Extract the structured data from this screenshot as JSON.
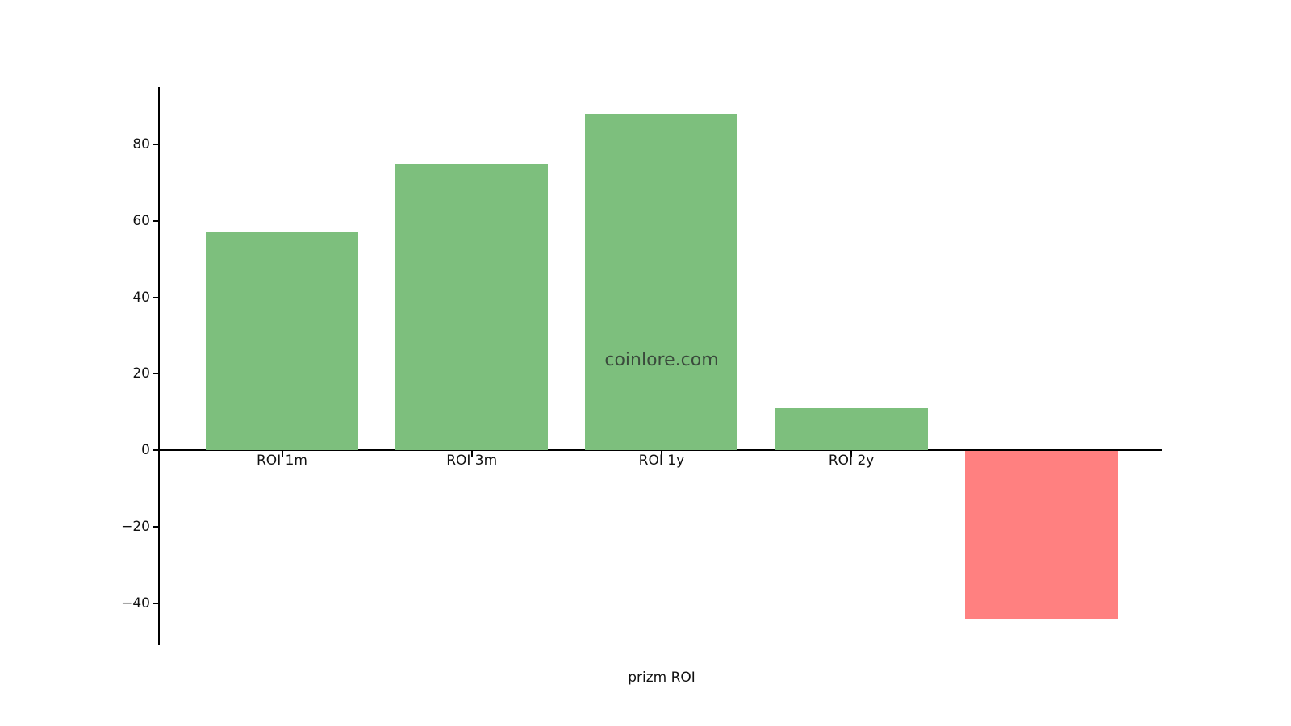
{
  "page": {
    "background_color": "#ffffff"
  },
  "chart_data": {
    "type": "bar",
    "title": "",
    "xlabel": "prizm ROI",
    "ylabel": "",
    "watermark": "coinlore.com",
    "categories": [
      "ROI 1m",
      "ROI 3m",
      "ROI 1y",
      "ROI 2y",
      ""
    ],
    "values": [
      57,
      75,
      88,
      11,
      -44
    ],
    "bar_colors": [
      "#7dbf7d",
      "#7dbf7d",
      "#7dbf7d",
      "#7dbf7d",
      "#ff8080"
    ],
    "positive_color": "#7dbf7d",
    "negative_color": "#ff8080",
    "yticks": [
      80,
      60,
      40,
      20,
      0,
      -20,
      -40
    ],
    "ylim": [
      -51,
      95
    ],
    "grid": false,
    "legend": false,
    "axis_color": "#000000",
    "tick_text_color": "#111111",
    "watermark_color": "#3a4a3c"
  }
}
